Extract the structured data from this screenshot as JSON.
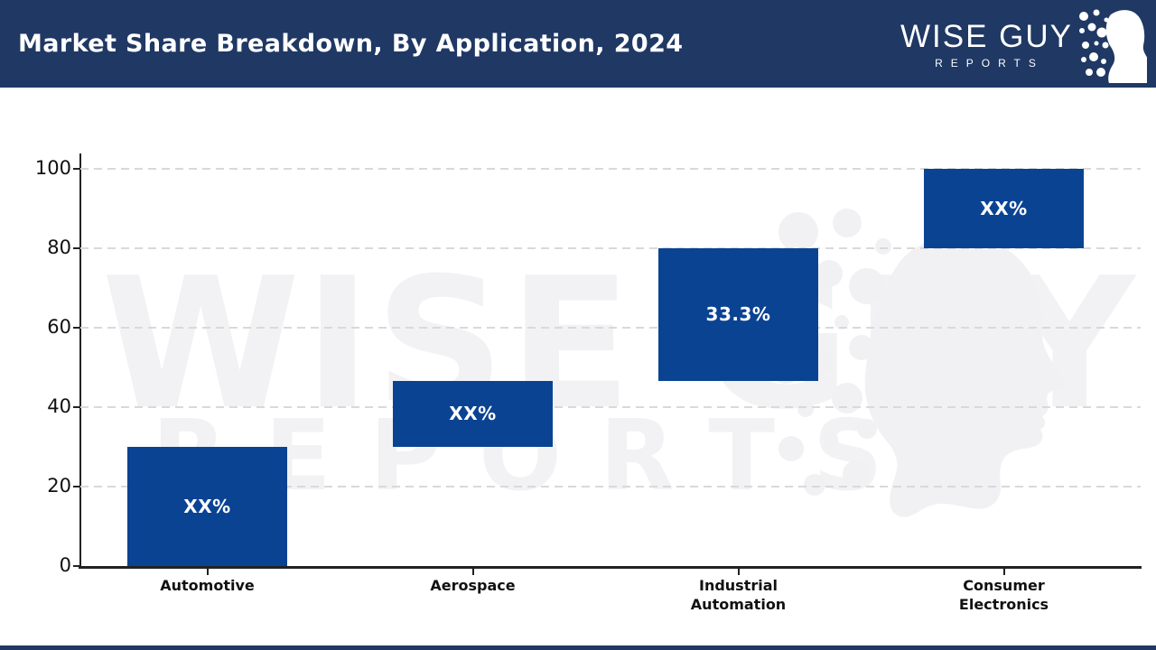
{
  "header": {
    "title": "Market Share Breakdown, By Application, 2024",
    "logo_line1": "WISE GUY",
    "logo_line2": "REPORTS",
    "bg_color": "#1f3864"
  },
  "watermark": {
    "line1": "WISE GUY",
    "line2": "REPORTS"
  },
  "chart_data": {
    "type": "bar",
    "subtype": "waterfall",
    "title": "Market Share Breakdown, By Application, 2024",
    "categories": [
      [
        "Automotive"
      ],
      [
        "Aerospace"
      ],
      [
        "Industrial",
        "Automation"
      ],
      [
        "Consumer",
        "Electronics"
      ]
    ],
    "segments": [
      {
        "category": "Automotive",
        "start": 0,
        "end": 30,
        "label": "XX%"
      },
      {
        "category": "Aerospace",
        "start": 30,
        "end": 46.7,
        "label": "XX%"
      },
      {
        "category": "Industrial Automation",
        "start": 46.7,
        "end": 80,
        "label": "33.3%"
      },
      {
        "category": "Consumer Electronics",
        "start": 80,
        "end": 100,
        "label": "XX%"
      }
    ],
    "unit": "%",
    "y_ticks": [
      0,
      20,
      40,
      60,
      80,
      100
    ],
    "ylim": [
      0,
      104
    ],
    "xlabel": "",
    "ylabel": "",
    "grid": "horizontal-dashed",
    "legend": "none",
    "bar_color": "#0b4393",
    "bar_label_color": "#ffffff",
    "axis_color": "#222222",
    "grid_color": "#d9d9d9"
  }
}
